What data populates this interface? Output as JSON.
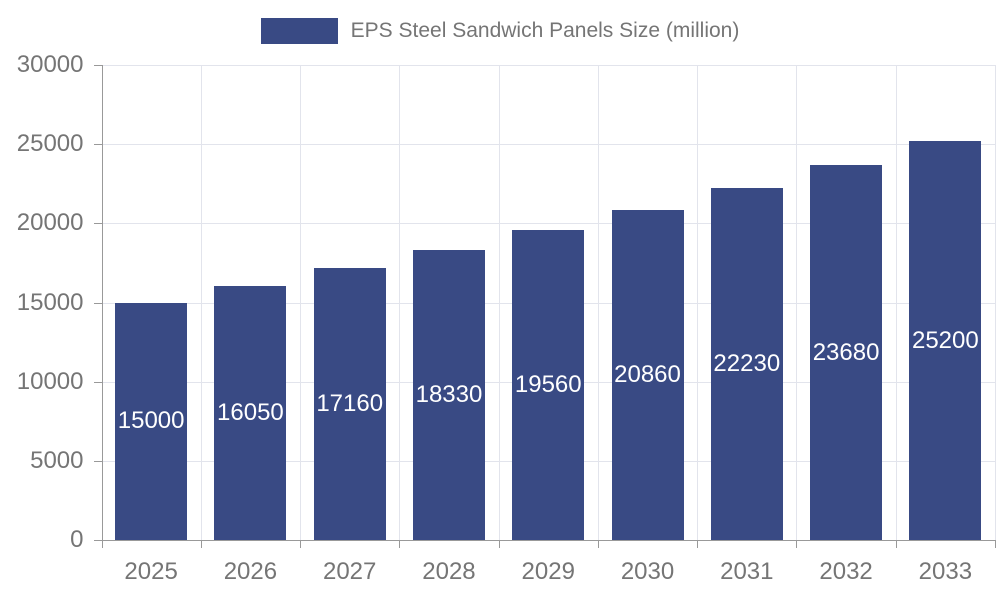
{
  "legend": {
    "label": "EPS Steel Sandwich Panels Size (million)"
  },
  "colors": {
    "bar": "#394a84",
    "legend_text": "#757575",
    "axis_label": "#757575",
    "grid_line": "#e2e4ec",
    "axis_line": "#999999",
    "value_label": "#ffffff",
    "background": "#ffffff"
  },
  "chart_data": {
    "type": "bar",
    "title": "",
    "categories": [
      "2025",
      "2026",
      "2027",
      "2028",
      "2029",
      "2030",
      "2031",
      "2032",
      "2033"
    ],
    "series": [
      {
        "name": "EPS Steel Sandwich Panels Size (million)",
        "values": [
          15000,
          16050,
          17160,
          18330,
          19560,
          20860,
          22230,
          23680,
          25200
        ]
      }
    ],
    "xlabel": "",
    "ylabel": "",
    "ylim": [
      0,
      30000
    ],
    "y_ticks": [
      0,
      5000,
      10000,
      15000,
      20000,
      25000,
      30000
    ],
    "grid": true,
    "legend_position": "top-center",
    "value_labels": "inside-center"
  }
}
